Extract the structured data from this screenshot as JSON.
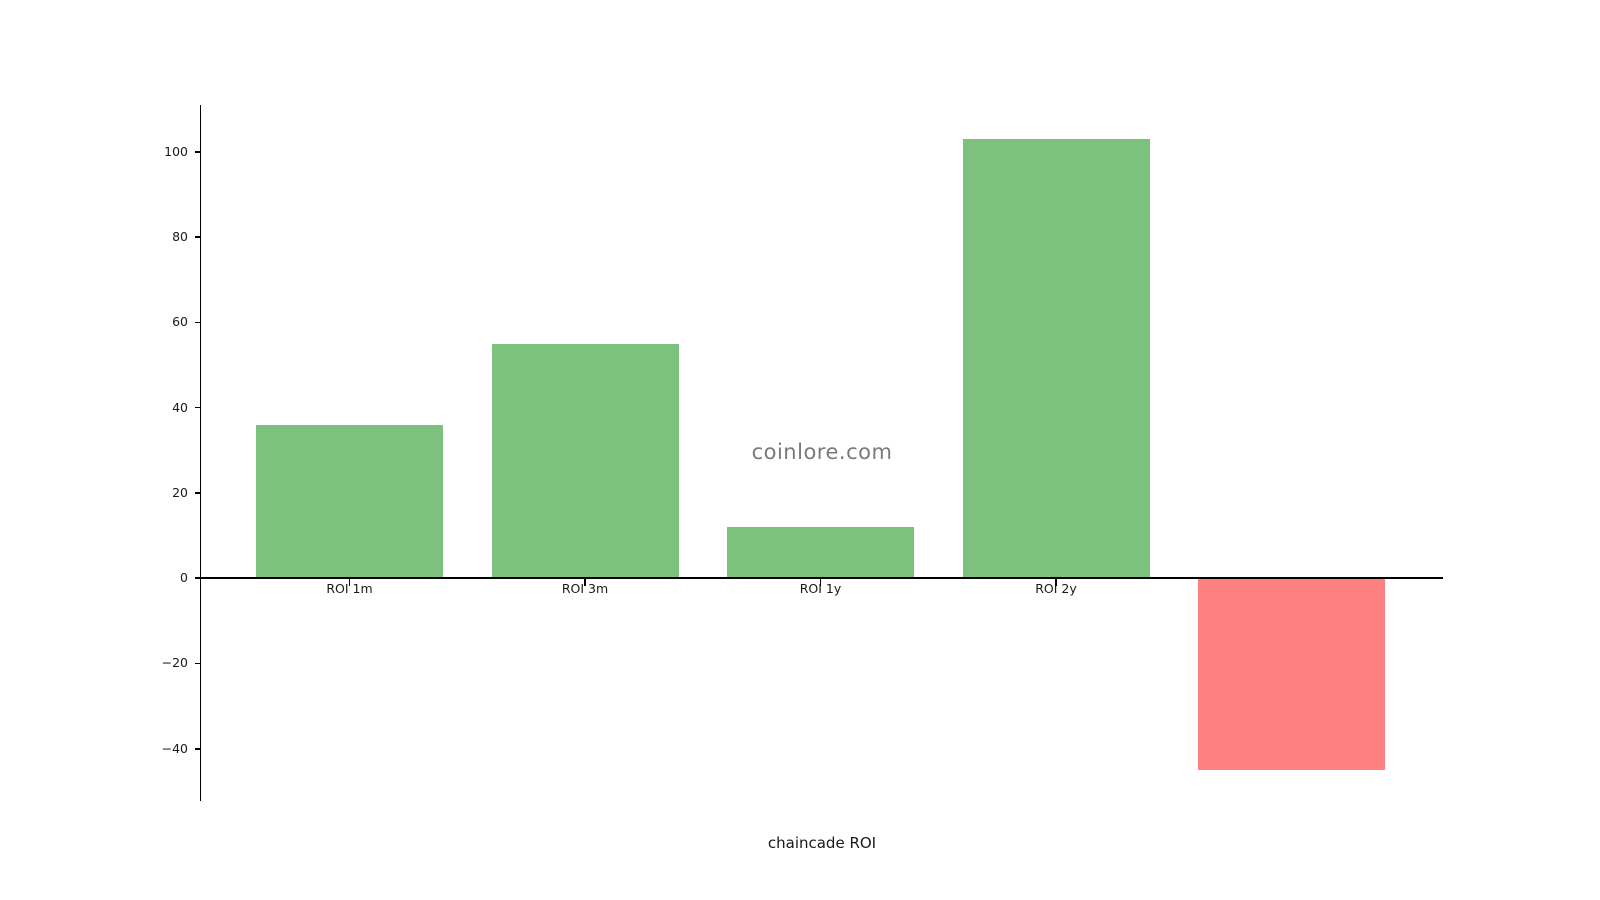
{
  "chart_data": {
    "type": "bar",
    "categories": [
      "ROI 1m",
      "ROI 3m",
      "ROI 1y",
      "ROI 2y",
      ""
    ],
    "values": [
      36,
      55,
      12,
      103,
      -45
    ],
    "title": "",
    "xlabel": "chaincade ROI",
    "ylabel": "",
    "annotation": "coinlore.com",
    "ylim": [
      -52.2,
      111.3
    ],
    "yticks": [
      100,
      80,
      60,
      40,
      20,
      0,
      -20,
      -40
    ],
    "ytick_labels": [
      "100",
      "80",
      "60",
      "40",
      "20",
      "0",
      "−20",
      "−40"
    ],
    "grid": false,
    "legend": "none",
    "colors": {
      "positive": "#7cc17e",
      "negative": "#ff8080",
      "axis": "#000000",
      "text": "#1a1a1a",
      "annotation": "#7a7a7a"
    }
  }
}
